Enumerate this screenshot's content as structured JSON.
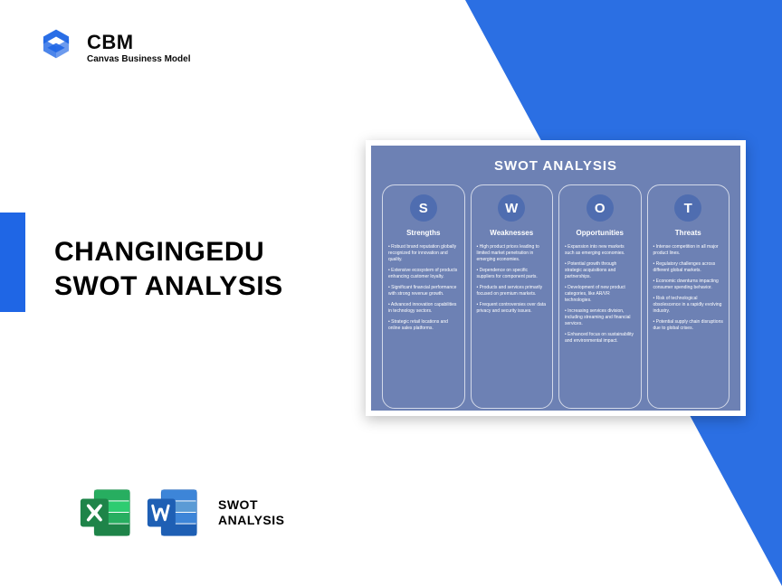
{
  "colors": {
    "brand_blue": "#1f66e5",
    "triangle_blue": "#2b6fe3",
    "accent_blue": "#1f66e5",
    "swot_bg": "#6d81b4",
    "swot_circle": "#4f6db0",
    "excel_green": "#1e8449",
    "excel_green_light": "#27ae60",
    "word_blue": "#1e5fb4",
    "word_blue_light": "#3d85d8"
  },
  "logo": {
    "brand": "CBM",
    "tagline": "Canvas Business Model"
  },
  "title": {
    "line1": "CHANGINGEDU",
    "line2": "SWOT ANALYSIS"
  },
  "footer": {
    "label_line1": "SWOT",
    "label_line2": "ANALYSIS"
  },
  "swot": {
    "title": "SWOT ANALYSIS",
    "columns": [
      {
        "letter": "S",
        "heading": "Strengths",
        "items": [
          "• Robust brand reputation globally recognized for innovation and quality.",
          "• Extensive ecosystem of products enhancing customer loyalty.",
          "• Significant financial performance with strong revenue growth.",
          "• Advanced innovation capabilities in technology sectors.",
          "• Strategic retail locations and online sales platforms."
        ]
      },
      {
        "letter": "W",
        "heading": "Weaknesses",
        "items": [
          "• High product prices leading to limited market penetration in emerging economies.",
          "• Dependence on specific suppliers for component parts.",
          "• Products and services primarily focused on premium markets.",
          "• Frequent controversies over data privacy and security issues."
        ]
      },
      {
        "letter": "O",
        "heading": "Opportunities",
        "items": [
          "• Expansion into new markets such as emerging economies.",
          "• Potential growth through strategic acquisitions and partnerships.",
          "• Development of new product categories, like AR/VR technologies.",
          "• Increasing services division, including streaming and financial services.",
          "• Enhanced focus on sustainability and environmental impact."
        ]
      },
      {
        "letter": "T",
        "heading": "Threats",
        "items": [
          "• Intense competition in all major product lines.",
          "• Regulatory challenges across different global markets.",
          "• Economic downturns impacting consumer spending behavior.",
          "• Risk of technological obsolescence in a rapidly evolving industry.",
          "• Potential supply chain disruptions due to global crises."
        ]
      }
    ]
  }
}
